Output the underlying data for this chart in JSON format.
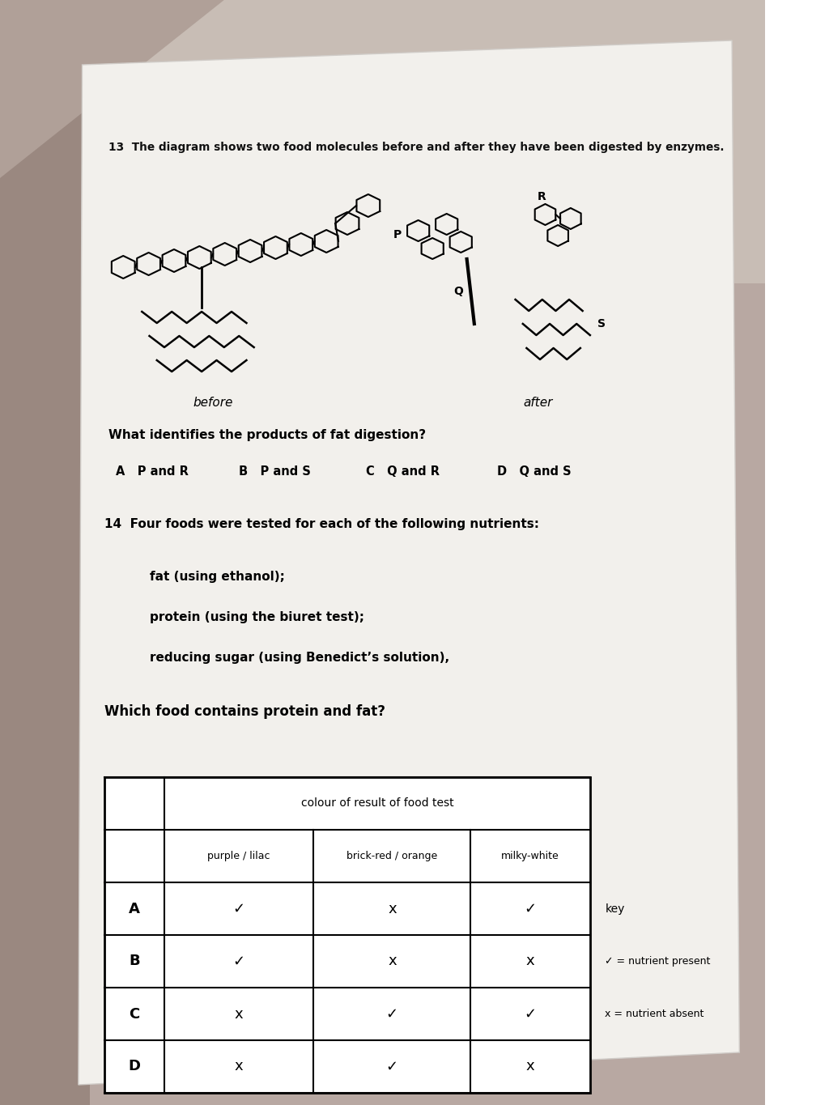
{
  "bg_top_color": "#b8a8a0",
  "bg_bottom_color": "#c8b8b0",
  "paper_color": "#eeebe5",
  "shadow_color": "#a09890",
  "q13_text": "13  The diagram shows two food molecules before and after they have been digested by enzymes.",
  "before_label": "before",
  "after_label": "after",
  "q13_question": "What identifies the products of fat digestion?",
  "q13_options": [
    "A   P and R",
    "B   P and S",
    "C   Q and R",
    "D   Q and S"
  ],
  "q14_text": "14  Four foods were tested for each of the following nutrients:",
  "q14_bullets": [
    "fat (using ethanol);",
    "protein (using the biuret test);",
    "reducing sugar (using Benedict’s solution),"
  ],
  "q14_question": "Which food contains protein and fat?",
  "table_header_main": "colour of result of food test",
  "table_col_headers": [
    "purple / lilac",
    "brick-red / orange",
    "milky-white"
  ],
  "key_text": "key",
  "key_present": "✓ = nutrient present",
  "key_absent": "x = nutrient absent"
}
